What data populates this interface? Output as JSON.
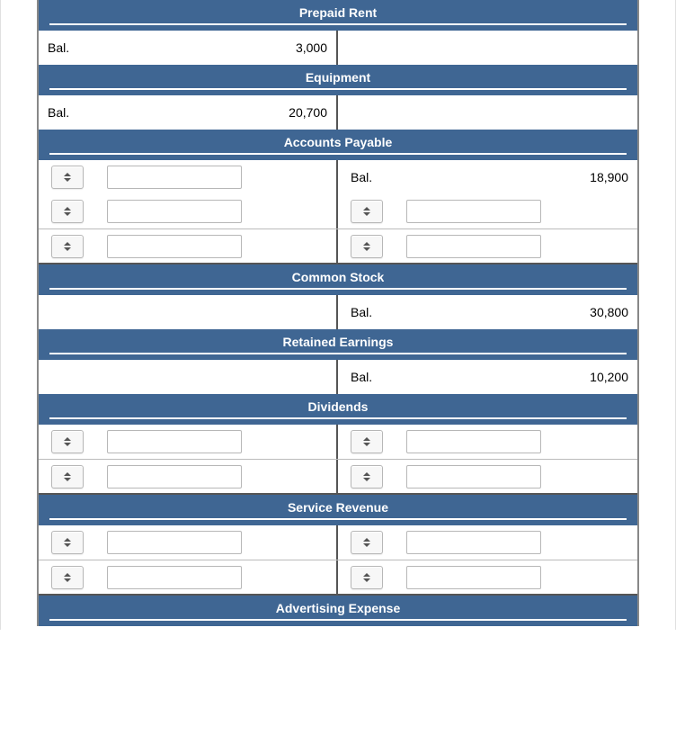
{
  "colors": {
    "header_bg": "#3f6693",
    "header_text": "#ffffff",
    "border": "#888888",
    "divider": "#555555"
  },
  "labels": {
    "bal": "Bal."
  },
  "accounts": [
    {
      "title": "Prepaid Rent",
      "rows": [
        {
          "type": "balance",
          "side": "debit",
          "label": "Bal.",
          "value": "3,000"
        }
      ]
    },
    {
      "title": "Equipment",
      "rows": [
        {
          "type": "balance",
          "side": "debit",
          "label": "Bal.",
          "value": "20,700"
        }
      ]
    },
    {
      "title": "Accounts Payable",
      "rows": [
        {
          "type": "mixed",
          "debit": {
            "spinner": true,
            "text": ""
          },
          "credit": {
            "balance": true,
            "label": "Bal.",
            "value": "18,900"
          }
        },
        {
          "type": "input",
          "debit": {
            "spinner": true,
            "text": ""
          },
          "credit": {
            "spinner": true,
            "text": ""
          }
        },
        {
          "type": "divider"
        },
        {
          "type": "input",
          "debit": {
            "spinner": true,
            "text": ""
          },
          "credit": {
            "spinner": true,
            "text": ""
          }
        },
        {
          "type": "subtotal_line"
        }
      ]
    },
    {
      "title": "Common Stock",
      "rows": [
        {
          "type": "balance",
          "side": "credit",
          "label": "Bal.",
          "value": "30,800"
        }
      ]
    },
    {
      "title": "Retained Earnings",
      "rows": [
        {
          "type": "balance",
          "side": "credit",
          "label": "Bal.",
          "value": "10,200"
        }
      ]
    },
    {
      "title": "Dividends",
      "rows": [
        {
          "type": "input",
          "debit": {
            "spinner": true,
            "text": ""
          },
          "credit": {
            "spinner": true,
            "text": ""
          }
        },
        {
          "type": "divider"
        },
        {
          "type": "input",
          "debit": {
            "spinner": true,
            "text": ""
          },
          "credit": {
            "spinner": true,
            "text": ""
          }
        },
        {
          "type": "subtotal_line"
        }
      ]
    },
    {
      "title": "Service Revenue",
      "rows": [
        {
          "type": "input",
          "debit": {
            "spinner": true,
            "text": ""
          },
          "credit": {
            "spinner": true,
            "text": ""
          }
        },
        {
          "type": "divider"
        },
        {
          "type": "input",
          "debit": {
            "spinner": true,
            "text": ""
          },
          "credit": {
            "spinner": true,
            "text": ""
          }
        },
        {
          "type": "subtotal_line"
        }
      ]
    },
    {
      "title": "Advertising Expense",
      "rows": []
    }
  ]
}
